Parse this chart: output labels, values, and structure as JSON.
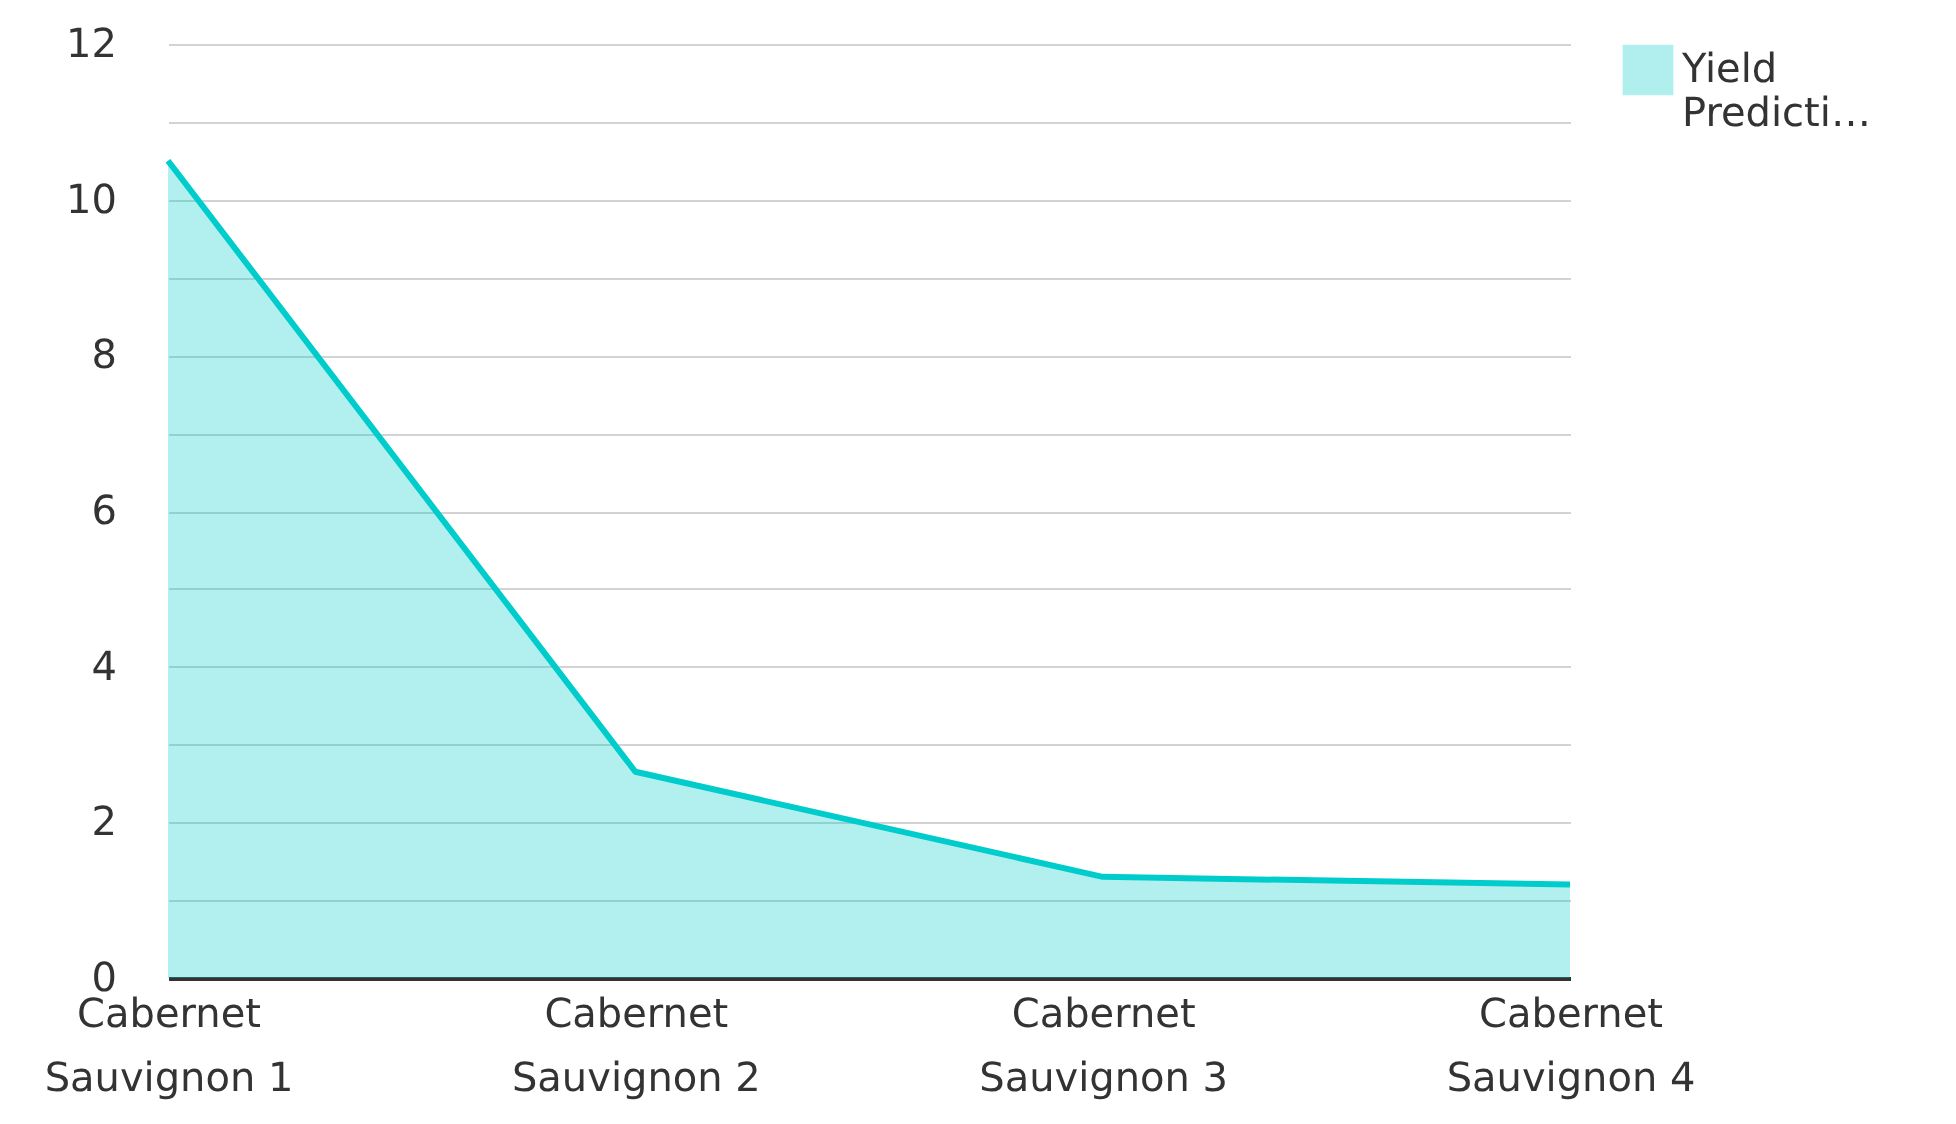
{
  "chart_data": {
    "type": "area",
    "categories": [
      "Cabernet Sauvignon 1",
      "Cabernet Sauvignon 2",
      "Cabernet Sauvignon 3",
      "Cabernet Sauvignon 4"
    ],
    "series": [
      {
        "name": "Yield Predicti…",
        "color": "#00cccc",
        "values": [
          10.5,
          2.65,
          1.3,
          1.2
        ]
      }
    ],
    "ylim": [
      0,
      12
    ],
    "yticks": [
      0,
      {
        "value": 1,
        "label": null
      },
      2,
      {
        "value": 3,
        "label": null
      },
      4,
      {
        "value": 5,
        "label": null
      },
      6,
      {
        "value": 7,
        "label": null
      },
      8,
      {
        "value": 9,
        "label": null
      },
      10,
      {
        "value": 11,
        "label": null
      },
      12
    ],
    "grid": true,
    "legend": "top right"
  }
}
